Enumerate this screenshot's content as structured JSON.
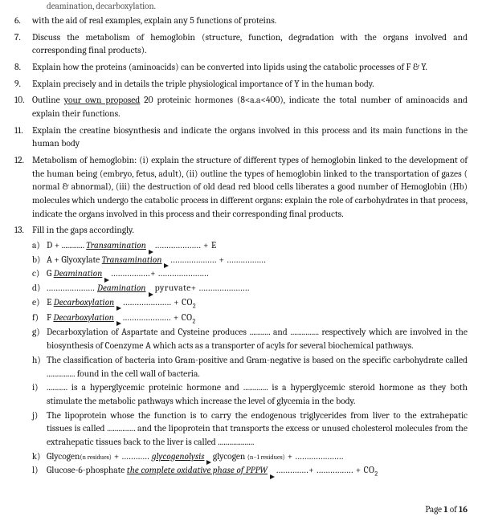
{
  "cutoff_line": "deamination, decarboxylation.",
  "items": [
    {
      "num": "6.",
      "text": "with the aid of real examples, explain any 5 functions of proteins."
    },
    {
      "num": "7.",
      "text": "Discuss the metabolism of hemoglobin (structure, function, degradation with the organs involved and corresponding final products)."
    },
    {
      "num": "8.",
      "text": "Explain how the proteins (aminoacids) can be converted into lipids using the catabolic processes of F & Y."
    },
    {
      "num": "9.",
      "text_pre": "Explain precisely and in details the triple physiological importance of Y in the human body."
    },
    {
      "num": "10.",
      "text_pre": "Outline ",
      "underlined": "your own proposed",
      "text_post": " 20 proteinic hormones (8<a.a<400), indicate the total number of aminoacids and explain their functions."
    },
    {
      "num": "11.",
      "text": "Explain the creatine biosynthesis and indicate the organs involved in this process and its main functions in the human body"
    },
    {
      "num": "12.",
      "text": "Metabolism of hemoglobin: (i) explain the structure of different types of hemoglobin linked to the development of the human being (embryo, fetus, adult), (ii) outline the types of hemoglobin linked to the transportation of gazes ( normal & abnormal), (iii) the destruction of old dead red blood cells liberates a good number of Hemoglobin (Hb) molecules which undergo the catabolic process in different organs: explain the role of carbohydrates in that process, indicate the organs involved in this process and their corresponding final products."
    }
  ],
  "q13_lead": "Fill in the gaps accordingly.",
  "q13": {
    "a": {
      "pre": "D + ............ ",
      "arrow": "Transamination",
      "post": "  .................... + E"
    },
    "b": {
      "pre": "A + Glyoxylate  ",
      "arrow": "Transamination",
      "post": "  .................... + ................."
    },
    "c": {
      "pre": "G  ",
      "arrow": "Deamination",
      "post": "  .................+ ......................"
    },
    "d": {
      "pre": "..................... ",
      "arrow": "Deamination",
      "post": "  pyruvate+ ......................"
    },
    "e": {
      "pre": "E  ",
      "arrow": "Decarboxylation",
      "post": "  ..................... + CO",
      "sub": "2"
    },
    "f": {
      "pre": "F ",
      "arrow": "Decarboxylation",
      "post": "  ..................... + CO",
      "sub": "2"
    },
    "g": "Decarboxylation of Aspartate and Cysteine produces ........... and ............... respectively which are involved in the biosynthesis of Coenzyme A which acts as a transporter of acyls for several biochemical pathways.",
    "h": "The classification of bacteria into Gram-positive and Gram-negative is based on the specific carbohydrate called ............... found in the cell wall of bacteria.",
    "i": "........... is a hyperglycemic proteinic hormone and ............. is a hyperglycemic steroid hormone as they both stimulate the metabolic pathways which increase the level of glycemia in the body.",
    "j": "The lipoprotein whose the function is to carry the endogenous triglycerides from liver to the extrahepatic tissues is called ............... and the lipoprotein that transports the excess or unused cholesterol molecules from the extrahepatic tissues back to the liver is called ...................",
    "k": {
      "pre": "Glycogen",
      "sub1": "(n residues)",
      "mid1": " + ............ ",
      "arrow": "glycogenolysis",
      "mid2": "  glycogen ",
      "sub2": "(n−1 residues)",
      "post": " + ....................."
    },
    "l": {
      "pre": "Glucose-6-phosphate  ",
      "arrow": "the complete oxidative phase of PPPW",
      "post": "  ..............+ ................ + CO",
      "sub": "2"
    }
  },
  "footer": {
    "pre": "Page ",
    "bold1": "1",
    "mid": " of ",
    "bold2": "16"
  }
}
